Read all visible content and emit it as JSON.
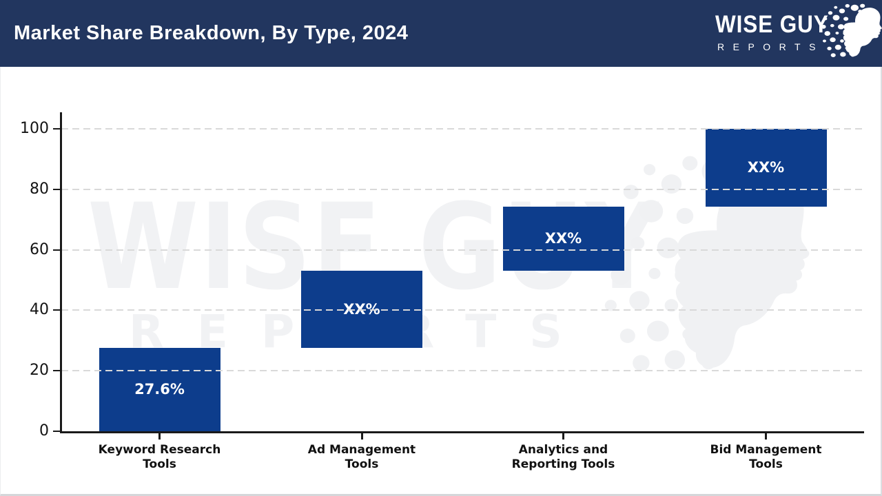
{
  "header": {
    "title": "Market Share Breakdown, By Type, 2024",
    "background_color": "#22365f",
    "logo": {
      "line1": "WISE GUY",
      "line2": "REPORTS"
    }
  },
  "watermark": {
    "line1": "WISE GUY",
    "line2": "REPORTS"
  },
  "chart_data": {
    "type": "bar",
    "variant": "waterfall-floating-bars",
    "title": "Market Share Breakdown, By Type, 2024",
    "categories": [
      [
        "Keyword Research",
        "Tools"
      ],
      [
        "Ad Management",
        "Tools"
      ],
      [
        "Analytics and",
        "Reporting Tools"
      ],
      [
        "Bid Management",
        "Tools"
      ]
    ],
    "segments": [
      {
        "category": "Keyword Research Tools",
        "start": 0,
        "end": 27.6,
        "label": "27.6%"
      },
      {
        "category": "Ad Management Tools",
        "start": 27.6,
        "end": 53.1,
        "label": "XX%"
      },
      {
        "category": "Analytics and Reporting Tools",
        "start": 53.1,
        "end": 74.3,
        "label": "XX%"
      },
      {
        "category": "Bid Management Tools",
        "start": 74.3,
        "end": 100,
        "label": "XX%"
      }
    ],
    "xlabel": "",
    "ylabel": "",
    "ylim": [
      0,
      100
    ],
    "yticks": [
      0,
      20,
      40,
      60,
      80,
      100
    ],
    "grid": "horizontal-dashed",
    "legend": false,
    "bar_color": "#0d3d8c",
    "bar_label_color": "#ffffff",
    "axis_color": "#1a1a1a",
    "gridline_color": "#d9d9d9"
  }
}
